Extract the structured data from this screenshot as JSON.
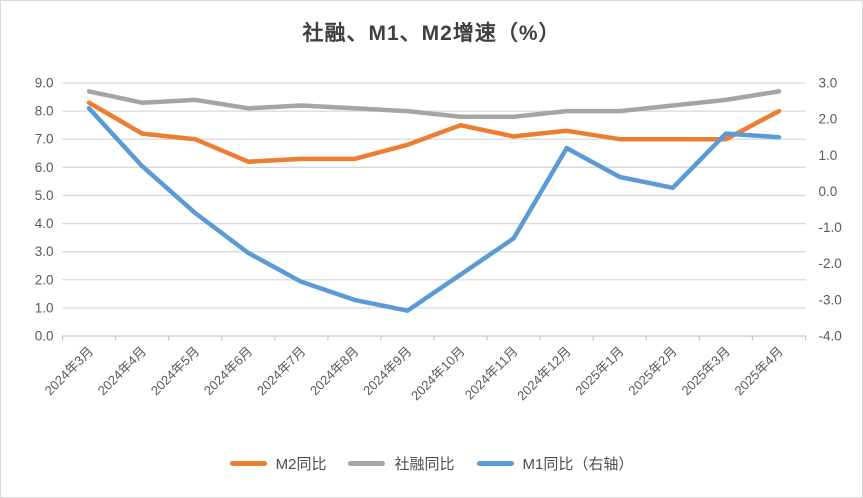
{
  "title": "社融、M1、M2增速（%）",
  "chart_data": {
    "type": "line",
    "title": "社融、M1、M2增速（%）",
    "categories": [
      "2024年3月",
      "2024年4月",
      "2024年5月",
      "2024年6月",
      "2024年7月",
      "2024年8月",
      "2024年9月",
      "2024年10月",
      "2024年11月",
      "2024年12月",
      "2025年1月",
      "2025年2月",
      "2025年3月",
      "2025年4月"
    ],
    "series": [
      {
        "name": "M2同比",
        "axis": "left",
        "color": "#ED7D31",
        "values": [
          8.3,
          7.2,
          7.0,
          6.2,
          6.3,
          6.3,
          6.8,
          7.5,
          7.1,
          7.3,
          7.0,
          7.0,
          7.0,
          8.0
        ]
      },
      {
        "name": "社融同比",
        "axis": "left",
        "color": "#A5A5A5",
        "values": [
          8.7,
          8.3,
          8.4,
          8.1,
          8.2,
          8.1,
          8.0,
          7.8,
          7.8,
          8.0,
          8.0,
          8.2,
          8.4,
          8.7
        ]
      },
      {
        "name": "M1同比（右轴）",
        "axis": "right",
        "color": "#5B9BD5",
        "values": [
          2.3,
          0.7,
          -0.6,
          -1.7,
          -2.5,
          -3.0,
          -3.3,
          -2.3,
          -1.3,
          1.2,
          0.4,
          0.1,
          1.6,
          1.5
        ]
      }
    ],
    "left_axis": {
      "min": 0,
      "max": 9,
      "step": 1,
      "tick_labels": [
        "0.0",
        "1.0",
        "2.0",
        "3.0",
        "4.0",
        "5.0",
        "6.0",
        "7.0",
        "8.0",
        "9.0"
      ]
    },
    "right_axis": {
      "min": -4,
      "max": 3,
      "step": 1,
      "tick_labels": [
        "-4.0",
        "-3.0",
        "-2.0",
        "-1.0",
        "0.0",
        "1.0",
        "2.0",
        "3.0"
      ]
    },
    "grid": true,
    "legend_position": "bottom"
  },
  "style": {
    "gridline_color": "#d9d9d9",
    "axis_line_color": "#c9c9c9",
    "tick_color": "#c9c9c9",
    "axis_label_color": "#595959",
    "title_color": "#404040"
  }
}
